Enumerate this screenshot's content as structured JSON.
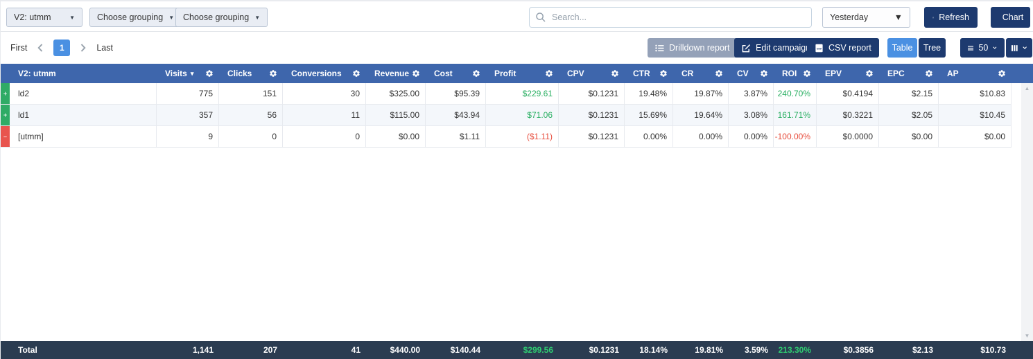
{
  "toolbar": {
    "campaign_select": {
      "value": "V2: utmm"
    },
    "grouping_selects": {
      "first": "Choose grouping",
      "second": "Choose grouping"
    },
    "search": {
      "placeholder": "Search..."
    },
    "date_select": {
      "value": "Yesterday"
    },
    "refresh_button": "Refresh",
    "chart_button": "Chart"
  },
  "pagination": {
    "first_label": "First",
    "current_page": "1",
    "last_label": "Last"
  },
  "actions": {
    "drilldown_button": "Drilldown report",
    "edit_campaign_button": "Edit campaign",
    "csv_button": "CSV report",
    "view_table": "Table",
    "view_tree": "Tree",
    "rows_per_page": "50"
  },
  "table": {
    "name_column_header": "V2: utmm",
    "sorted_column": "Visits",
    "columns": [
      "Visits",
      "Clicks",
      "Conversions",
      "Revenue",
      "Cost",
      "Profit",
      "CPV",
      "CTR",
      "CR",
      "CV",
      "ROI",
      "EPV",
      "EPC",
      "AP"
    ],
    "rows": [
      {
        "name": "ld2",
        "status": "positive",
        "values": [
          "775",
          "151",
          "30",
          "$325.00",
          "$95.39",
          "$229.61",
          "$0.1231",
          "19.48%",
          "19.87%",
          "3.87%",
          "240.70%",
          "$0.4194",
          "$2.15",
          "$10.83"
        ]
      },
      {
        "name": "ld1",
        "status": "positive",
        "values": [
          "357",
          "56",
          "11",
          "$115.00",
          "$43.94",
          "$71.06",
          "$0.1231",
          "15.69%",
          "19.64%",
          "3.08%",
          "161.71%",
          "$0.3221",
          "$2.05",
          "$10.45"
        ]
      },
      {
        "name": "[utmm]",
        "status": "negative",
        "values": [
          "9",
          "0",
          "0",
          "$0.00",
          "$1.11",
          "($1.11)",
          "$0.1231",
          "0.00%",
          "0.00%",
          "0.00%",
          "-100.00%",
          "$0.0000",
          "$0.00",
          "$0.00"
        ]
      }
    ],
    "total": {
      "label": "Total",
      "values": [
        "1,141",
        "207",
        "41",
        "$440.00",
        "$140.44",
        "$299.56",
        "$0.1231",
        "18.14%",
        "19.81%",
        "3.59%",
        "213.30%",
        "$0.3856",
        "$2.13",
        "$10.73"
      ]
    }
  },
  "icons": {
    "search": "magnifier-icon",
    "dropdown_caret": "caret-down-icon",
    "chevron_left": "chevron-left-icon",
    "chevron_right": "chevron-right-icon",
    "drilldown": "list-icon",
    "edit": "edit-pencil-icon",
    "csv": "csv-file-icon",
    "rows": "hamburger-icon",
    "columns": "columns-icon",
    "refresh": "refresh-icon",
    "chart": "pie-chart-icon",
    "column_settings": "gear-icon",
    "scroll_up": "arrow-up-icon",
    "scroll_down": "arrow-down-icon",
    "row_positive": "plus-icon",
    "row_negative": "minus-icon"
  },
  "colors": {
    "header_bg": "#3e66ac",
    "total_bg": "#2b3c51",
    "accent_blue": "#4a90e2",
    "navy_button": "#1d3a6f",
    "disabled_button": "#94a1b8",
    "positive": "#27ae60",
    "negative": "#e74c3c",
    "total_positive": "#2ecc71",
    "row_indicator_positive": "#2fab66",
    "row_indicator_negative": "#e8544e"
  }
}
